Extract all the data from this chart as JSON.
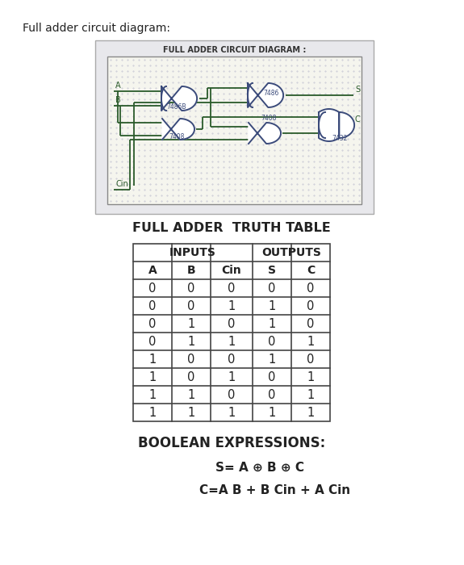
{
  "title": "Full adder circuit diagram:",
  "circuit_title": "FULL ADDER CIRCUIT DIAGRAM :",
  "truth_table_title": "FULL ADDER  TRUTH TABLE",
  "table_headers_inputs": "INPUTS",
  "table_headers_outputs": "OUTPUTS",
  "col_headers": [
    "A",
    "B",
    "Cin",
    "S",
    "C"
  ],
  "rows": [
    [
      0,
      0,
      0,
      0,
      0
    ],
    [
      0,
      0,
      1,
      1,
      0
    ],
    [
      0,
      1,
      0,
      1,
      0
    ],
    [
      0,
      1,
      1,
      0,
      1
    ],
    [
      1,
      0,
      0,
      1,
      0
    ],
    [
      1,
      0,
      1,
      0,
      1
    ],
    [
      1,
      1,
      0,
      0,
      1
    ],
    [
      1,
      1,
      1,
      1,
      1
    ]
  ],
  "bool_title": "BOOLEAN EXPRESSIONS:",
  "bool_s": "S= A ⊕ B ⊕ C",
  "bool_c": "C=A B + B Cin + A Cin",
  "bg_color": "#ffffff",
  "circuit_outer_bg": "#e8e8ec",
  "circuit_inner_bg": "#f5f5ee",
  "grid_color": "#c0c0d0",
  "gate_color": "#3a4a7a",
  "wire_color": "#2a5a2a",
  "table_border": "#444444",
  "text_color": "#222222",
  "label_color": "#2a4a2a"
}
